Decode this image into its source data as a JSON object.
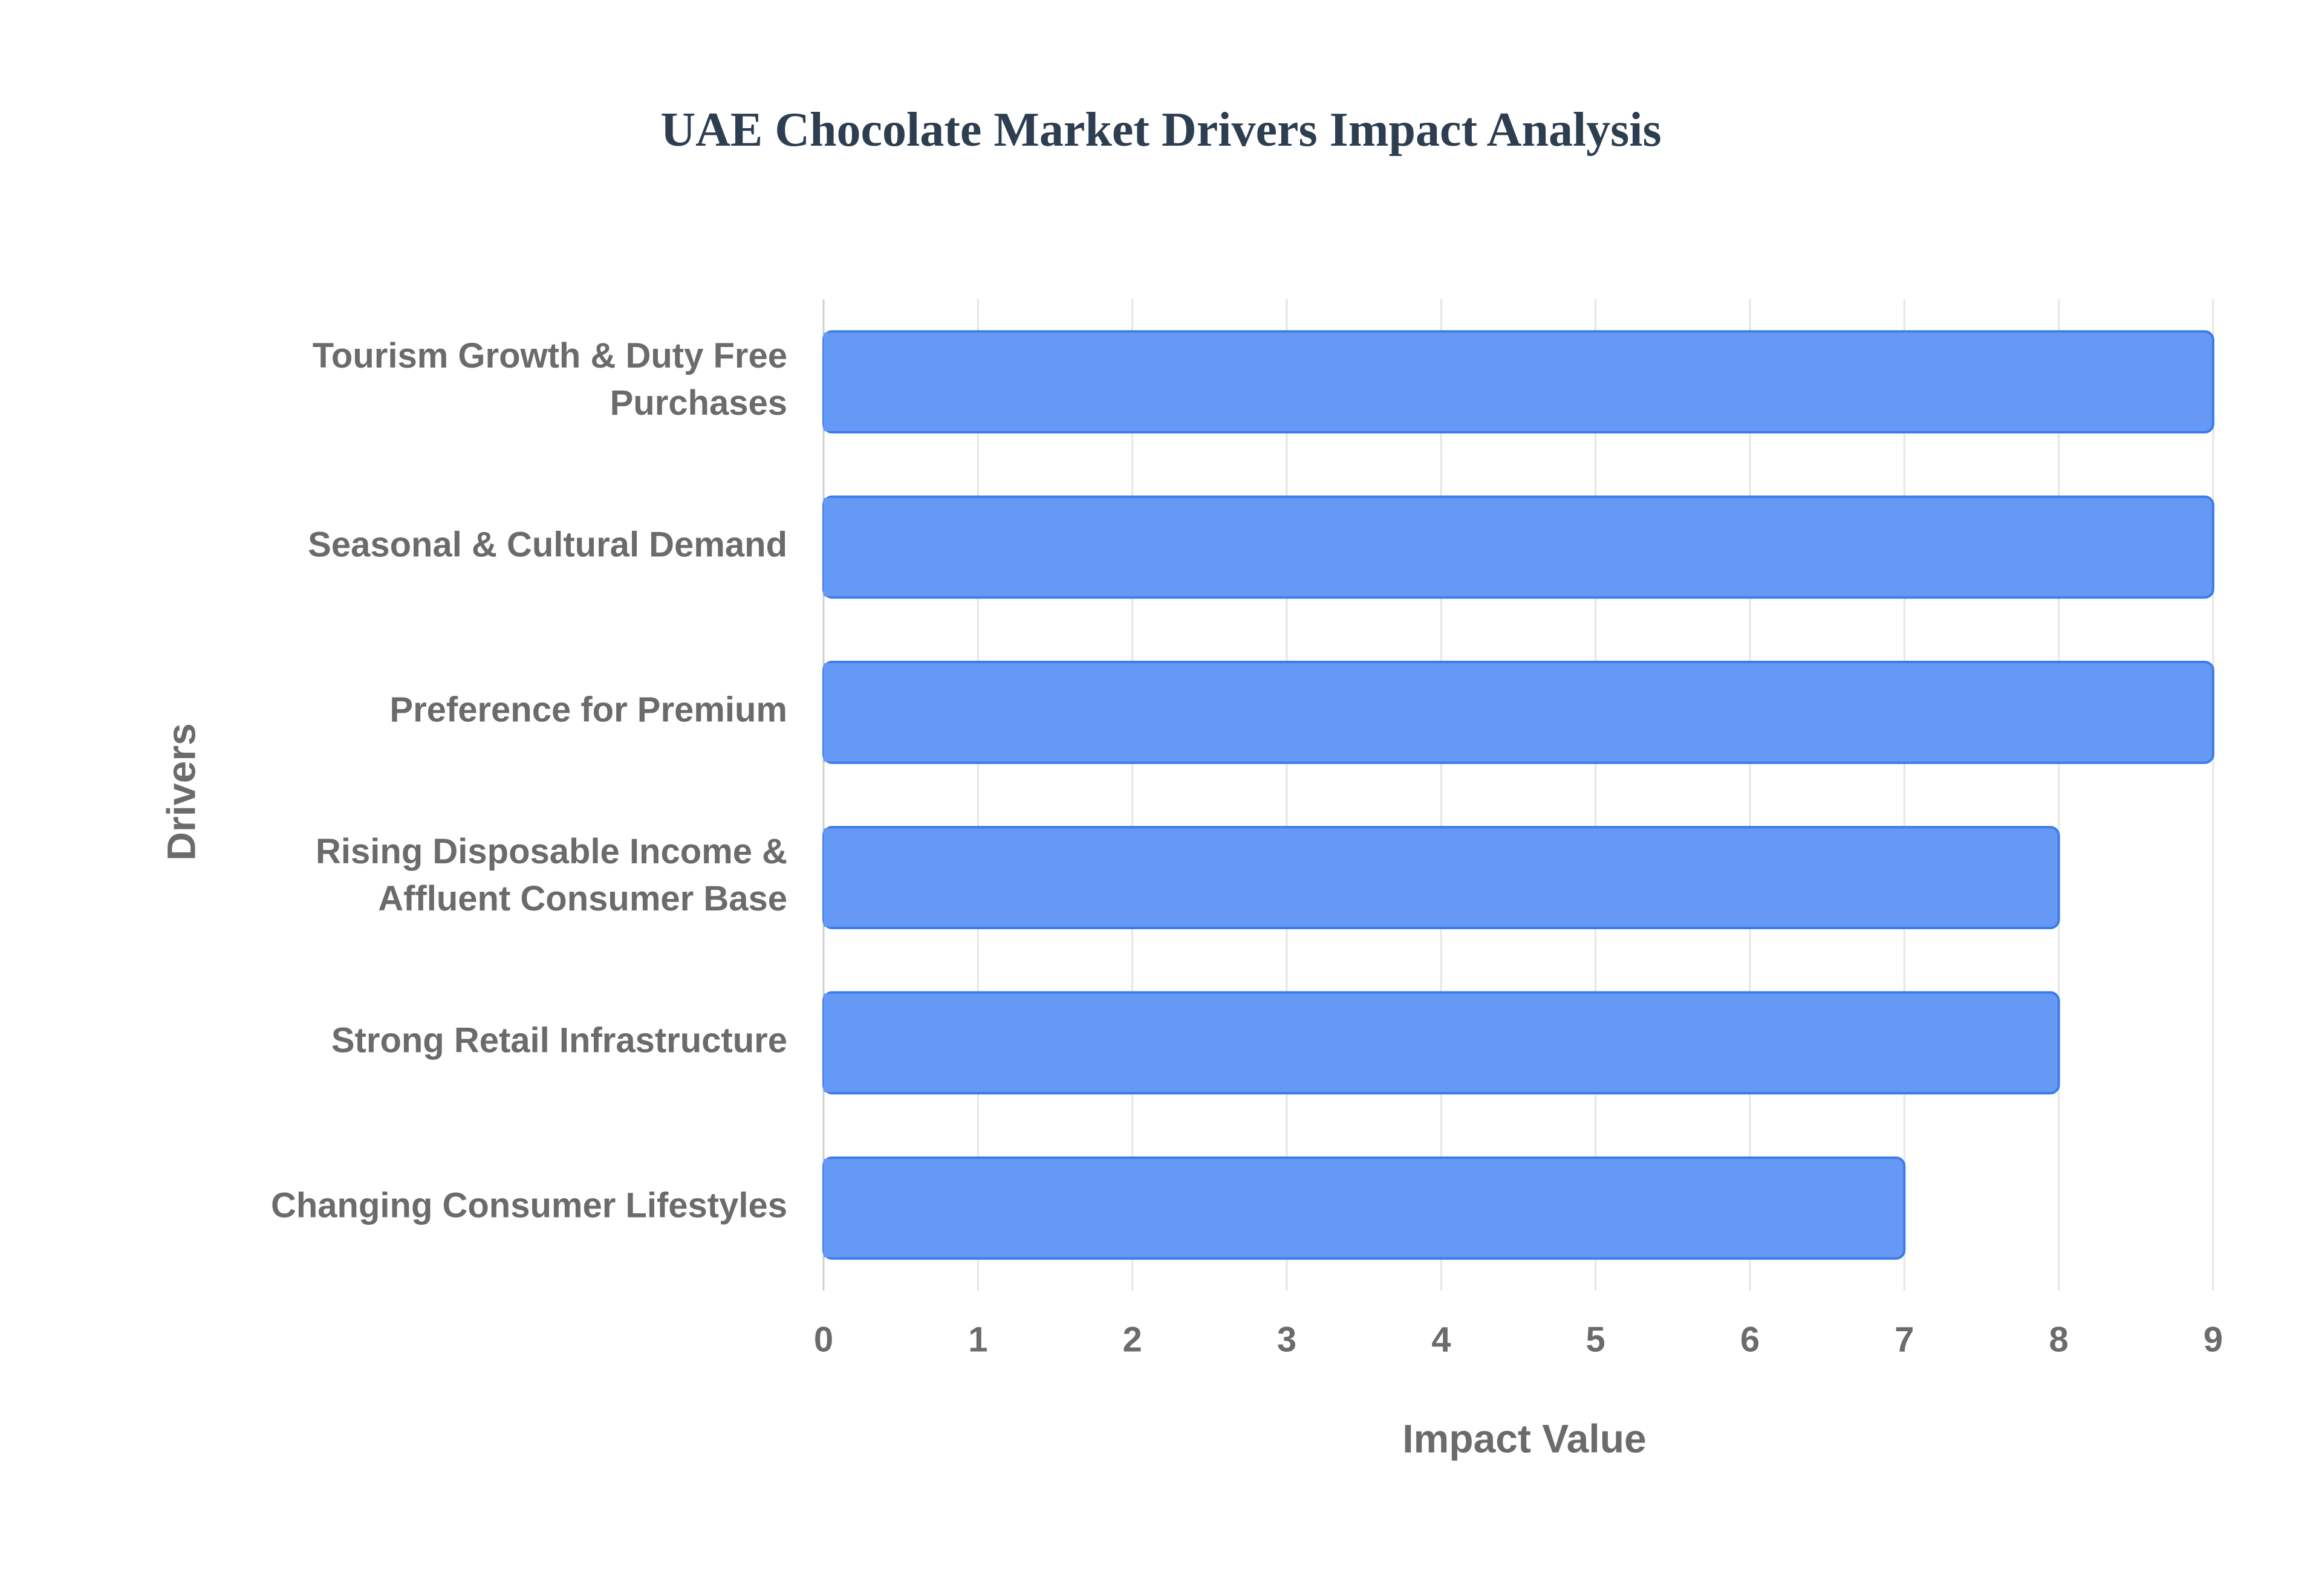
{
  "chart_data": {
    "type": "bar",
    "orientation": "horizontal",
    "title": "UAE Chocolate Market Drivers Impact Analysis",
    "xlabel": "Impact Value",
    "ylabel": "Drivers",
    "categories": [
      "Tourism Growth & Duty Free Purchases",
      "Seasonal & Cultural Demand",
      "Preference for Premium",
      "Rising Disposable Income & Affluent Consumer Base",
      "Strong Retail Infrastructure",
      "Changing Consumer Lifestyles"
    ],
    "category_lines": [
      [
        "Tourism Growth & Duty Free",
        "Purchases"
      ],
      [
        "Seasonal & Cultural Demand"
      ],
      [
        "Preference for Premium"
      ],
      [
        "Rising Disposable Income &",
        "Affluent Consumer Base"
      ],
      [
        "Strong Retail Infrastructure"
      ],
      [
        "Changing Consumer Lifestyles"
      ]
    ],
    "values": [
      9,
      9,
      9,
      8,
      8,
      7
    ],
    "xlim": [
      0,
      9
    ],
    "xticks": [
      "0",
      "1",
      "2",
      "3",
      "4",
      "5",
      "6",
      "7",
      "8",
      "9"
    ],
    "grid": true,
    "legend": "none",
    "colors": {
      "bar_fill": "#6699f5",
      "bar_stroke": "#3b7de9",
      "grid": "#e6e6e6",
      "axis": "#d0d0d0",
      "text": "#6b6b6b",
      "title": "#2c3e50"
    }
  }
}
